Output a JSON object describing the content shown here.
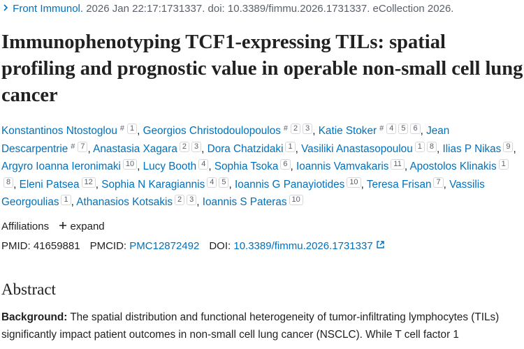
{
  "citation": {
    "journal": "Front Immunol.",
    "details": "2026 Jan 22:17:1731337. doi: 10.3389/fimmu.2026.1731337. eCollection 2026."
  },
  "title": "Immunophenotyping TCF1-expressing TILs: spatial profiling and prognostic value in operable non-small cell lung cancer",
  "authors": [
    {
      "name": "Konstantinos Ntostoglou",
      "sups": [
        "#",
        "1"
      ]
    },
    {
      "name": "Georgios Christodoulopoulos",
      "sups": [
        "#",
        "2",
        "3"
      ]
    },
    {
      "name": "Katie Stoker",
      "sups": [
        "#",
        "4",
        "5",
        "6"
      ]
    },
    {
      "name": "Jean Descarpentrie",
      "sups": [
        "#",
        "7"
      ]
    },
    {
      "name": "Anastasia Xagara",
      "sups": [
        "2",
        "3"
      ]
    },
    {
      "name": "Dora Chatzidaki",
      "sups": [
        "1"
      ]
    },
    {
      "name": "Vasiliki Anastasopoulou",
      "sups": [
        "1",
        "8"
      ]
    },
    {
      "name": "Ilias P Nikas",
      "sups": [
        "9"
      ]
    },
    {
      "name": "Argyro Ioanna Ieronimaki",
      "sups": [
        "10"
      ]
    },
    {
      "name": "Lucy Booth",
      "sups": [
        "4"
      ]
    },
    {
      "name": "Sophia Tsoka",
      "sups": [
        "6"
      ]
    },
    {
      "name": "Ioannis Vamvakaris",
      "sups": [
        "11"
      ]
    },
    {
      "name": "Apostolos Klinakis",
      "sups": [
        "1",
        "8"
      ]
    },
    {
      "name": "Eleni Patsea",
      "sups": [
        "12"
      ]
    },
    {
      "name": "Sophia N Karagiannis",
      "sups": [
        "4",
        "5"
      ]
    },
    {
      "name": "Ioannis G Panayiotides",
      "sups": [
        "10"
      ]
    },
    {
      "name": "Teresa Frisan",
      "sups": [
        "7"
      ]
    },
    {
      "name": "Vassilis Georgoulias",
      "sups": [
        "1"
      ]
    },
    {
      "name": "Athanasios Kotsakis",
      "sups": [
        "2",
        "3"
      ]
    },
    {
      "name": "Ioannis S Pateras",
      "sups": [
        "10"
      ]
    }
  ],
  "author_separator": ",",
  "affiliations": {
    "label": "Affiliations",
    "toggle": "expand"
  },
  "identifiers": [
    {
      "label": "PMID:",
      "value": "41659881"
    },
    {
      "label": "PMCID:",
      "value": "PMC12872492"
    },
    {
      "label": "DOI:",
      "value": "10.3389/fimmu.2026.1731337"
    }
  ],
  "abstract": {
    "heading": "Abstract",
    "sections": [
      {
        "label": "Background:",
        "text": "The spatial distribution and functional heterogeneity of tumor-infiltrating lymphocytes (TILs) significantly impact patient outcomes in non-small cell lung cancer (NSCLC). While T cell factor 1"
      }
    ]
  }
}
